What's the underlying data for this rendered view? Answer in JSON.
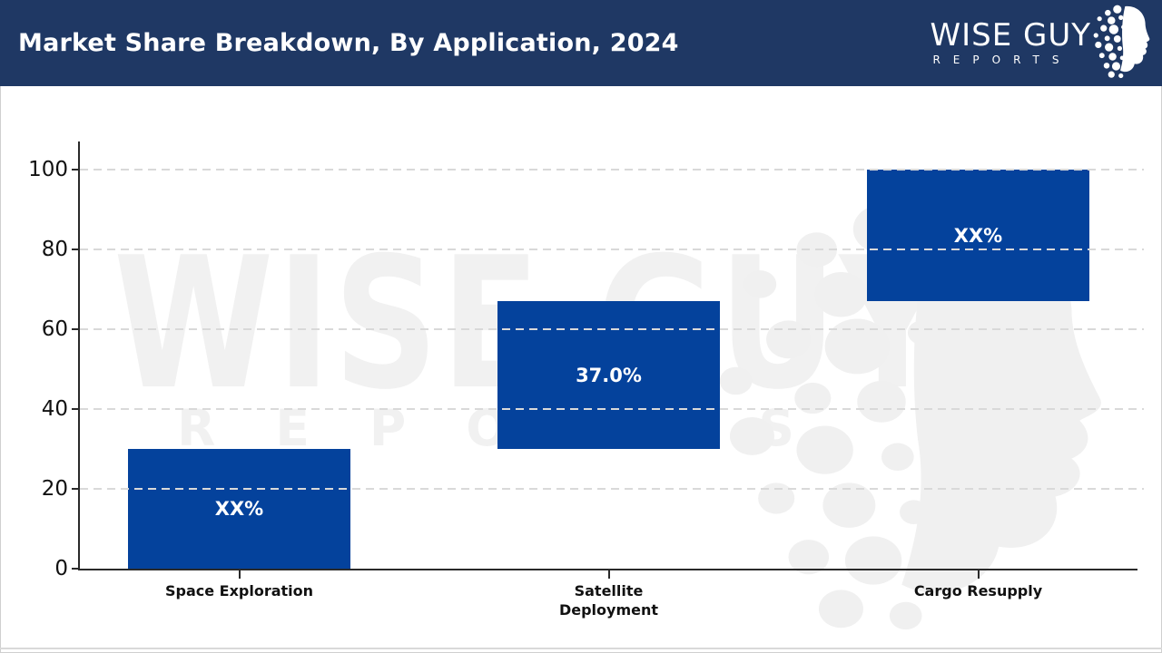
{
  "header": {
    "title": "Market Share Breakdown, By Application, 2024",
    "logo": {
      "wordmark": "WISE GUY",
      "subtext": "REPORTS"
    }
  },
  "watermark": {
    "wordmark": "WISE GUY",
    "subtext": "REPORTS"
  },
  "chart_data": {
    "type": "bar",
    "subtype": "floating-waterfall",
    "title": "Market Share Breakdown, By Application, 2024",
    "categories": [
      "Space Exploration",
      "Satellite Deployment",
      "Cargo Resupply"
    ],
    "values": [
      30,
      37,
      33
    ],
    "bars": [
      {
        "name": "Space Exploration",
        "name_lines": [
          "Space Exploration"
        ],
        "start": 0,
        "end": 30,
        "label": "XX%"
      },
      {
        "name": "Satellite Deployment",
        "name_lines": [
          "Satellite",
          "Deployment"
        ],
        "start": 30,
        "end": 67,
        "label": "37.0%"
      },
      {
        "name": "Cargo Resupply",
        "name_lines": [
          "Cargo Resupply"
        ],
        "start": 67,
        "end": 100,
        "label": "XX%"
      }
    ],
    "xlabel": "",
    "ylabel": "",
    "ylim": [
      0,
      100
    ],
    "yticks": [
      0,
      20,
      40,
      60,
      80,
      100
    ],
    "grid": "horizontal dashed, drawn above bars",
    "legend": "none",
    "bar_color": "#04429c",
    "bar_label_color": "#ffffff"
  },
  "colors": {
    "header_bg": "#1f3864",
    "bar": "#04429c",
    "watermark": "#f1f1f1",
    "axis": "#2a2a2a",
    "gridline": "#d9d9d9",
    "page_bg": "#ffffff"
  }
}
